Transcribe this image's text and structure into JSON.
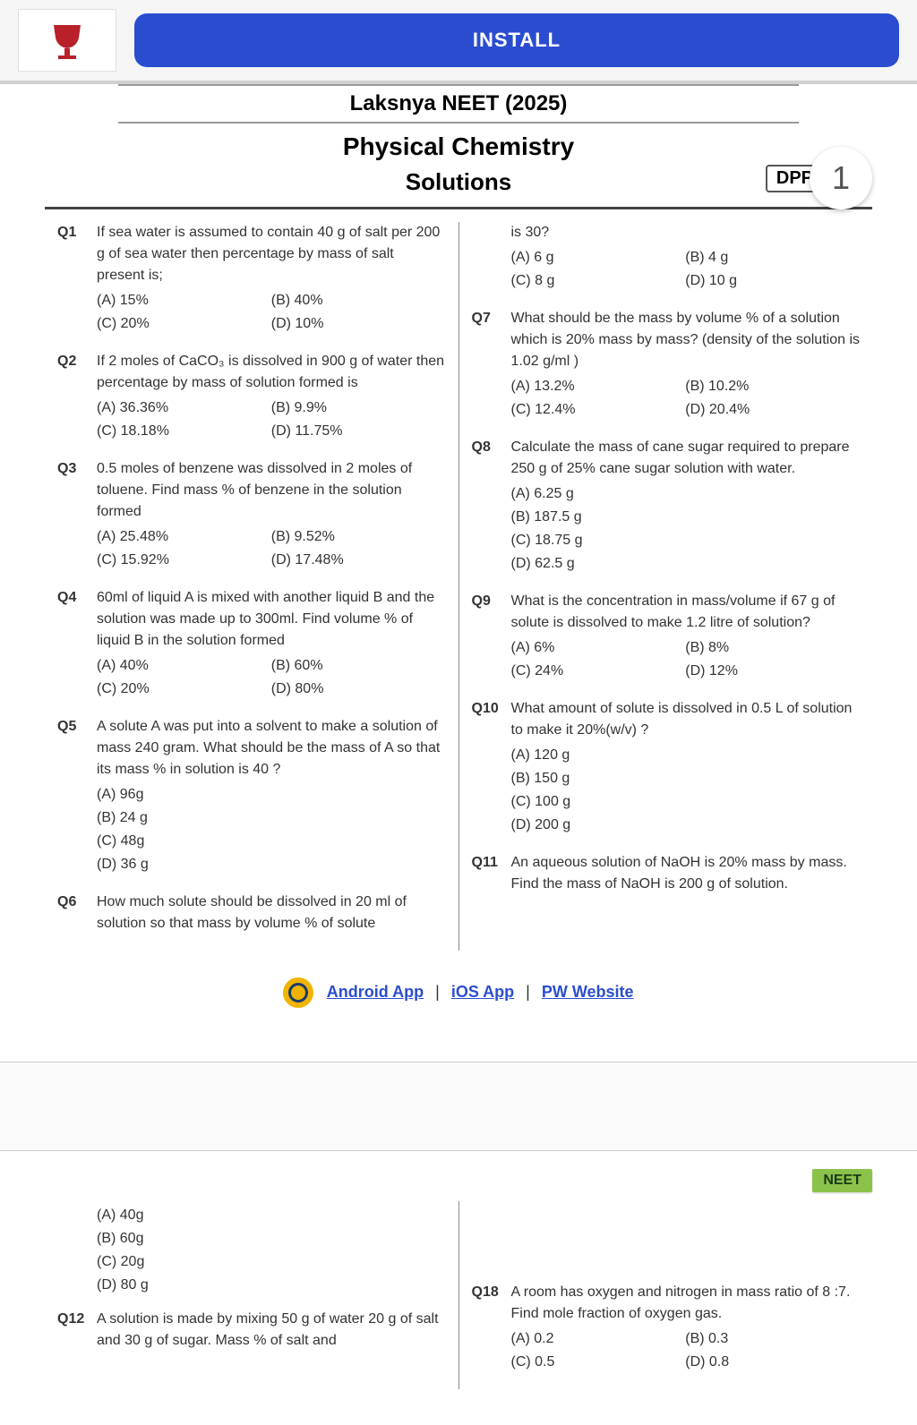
{
  "colors": {
    "install_bg": "#2a4dd0",
    "install_text": "#ffffff",
    "logo_red": "#b8202a",
    "link_android": "#2a4dd0",
    "link_ios": "#2a4dd0",
    "link_web": "#2a4dd0",
    "neet_bg": "#8bc34a"
  },
  "header": {
    "install_label": "INSTALL",
    "exam_title": "Laksnya NEET (2025)",
    "subject_title": "Physical Chemistry",
    "section_title": "Solutions",
    "dpp_label": "DPP",
    "dpp_number": "1"
  },
  "left_questions": [
    {
      "num": "Q1",
      "text": "If sea water is assumed to contain 40 g of salt per 200 g of sea water then percentage by mass of salt present is;",
      "opts": [
        "(A) 15%",
        "(B) 40%",
        "(C) 20%",
        "(D) 10%"
      ],
      "layout": "2col"
    },
    {
      "num": "Q2",
      "text": "If 2 moles of CaCO₃ is dissolved in 900 g of water then percentage by mass of solution formed is",
      "opts": [
        "(A) 36.36%",
        "(B) 9.9%",
        "(C) 18.18%",
        "(D) 11.75%"
      ],
      "layout": "2col"
    },
    {
      "num": "Q3",
      "text": "0.5 moles of benzene was dissolved in 2 moles of toluene. Find mass % of benzene in the solution formed",
      "opts": [
        "(A) 25.48%",
        "(B) 9.52%",
        "(C) 15.92%",
        "(D) 17.48%"
      ],
      "layout": "2col"
    },
    {
      "num": "Q4",
      "text": "60ml of liquid A is mixed with another liquid B and the solution was made up to 300ml. Find volume % of liquid B in the solution formed",
      "opts": [
        "(A) 40%",
        "(B) 60%",
        "(C) 20%",
        "(D) 80%"
      ],
      "layout": "2col"
    },
    {
      "num": "Q5",
      "text": "A solute A was put into a solvent to make a solution of mass 240 gram. What should be the mass of A so that its mass % in solution is 40 ?",
      "opts": [
        "(A) 96g",
        "(B) 24 g",
        "(C) 48g",
        "(D) 36 g"
      ],
      "layout": "1col"
    },
    {
      "num": "Q6",
      "text": "How much solute should be dissolved in 20 ml of solution so that mass by volume % of solute",
      "opts": [],
      "layout": "none"
    }
  ],
  "right_questions": [
    {
      "num": "",
      "text": "is 30?",
      "opts": [
        "(A) 6 g",
        "(B) 4 g",
        "(C) 8 g",
        "(D) 10 g"
      ],
      "layout": "2col"
    },
    {
      "num": "Q7",
      "text": "What should be the mass by volume % of a solution which is 20% mass by mass? (density of the solution is 1.02 g/ml )",
      "opts": [
        "(A) 13.2%",
        "(B) 10.2%",
        "(C) 12.4%",
        "(D) 20.4%"
      ],
      "layout": "2col"
    },
    {
      "num": "Q8",
      "text": "Calculate the mass of cane sugar required to prepare 250 g of 25% cane sugar solution with water.",
      "opts": [
        "(A) 6.25 g",
        "(B) 187.5 g",
        "(C) 18.75 g",
        "(D) 62.5 g"
      ],
      "layout": "1col"
    },
    {
      "num": "Q9",
      "text": "What is the concentration in mass/volume if 67 g of solute is dissolved to make 1.2 litre of solution?",
      "opts": [
        "(A) 6%",
        "(B) 8%",
        "(C) 24%",
        "(D) 12%"
      ],
      "layout": "2col"
    },
    {
      "num": "Q10",
      "text": "What amount of solute is dissolved in 0.5 L of solution to make it 20%(w/v) ?",
      "opts": [
        "(A) 120 g",
        "(B) 150 g",
        "(C) 100 g",
        "(D) 200 g"
      ],
      "layout": "1col"
    },
    {
      "num": "Q11",
      "text": "An aqueous solution of NaOH is 20% mass by mass. Find the mass of NaOH is 200 g of solution.",
      "opts": [],
      "layout": "none"
    }
  ],
  "footer": {
    "android": "Android App",
    "ios": "iOS App",
    "web": "PW Website"
  },
  "page2": {
    "neet_tag": "NEET",
    "left": {
      "opts": [
        "(A) 40g",
        "(B) 60g",
        "(C) 20g",
        "(D) 80 g"
      ],
      "q12_num": "Q12",
      "q12_text": "A solution is made by mixing 50 g of water 20 g of salt and 30 g of sugar. Mass % of salt and"
    },
    "right": {
      "q18_num": "Q18",
      "q18_text": "A room has oxygen and nitrogen in mass ratio of 8 :7. Find mole fraction of oxygen gas.",
      "q18_opts": [
        "(A) 0.2",
        "(B) 0.3",
        "(C) 0.5",
        "(D) 0.8"
      ]
    }
  }
}
